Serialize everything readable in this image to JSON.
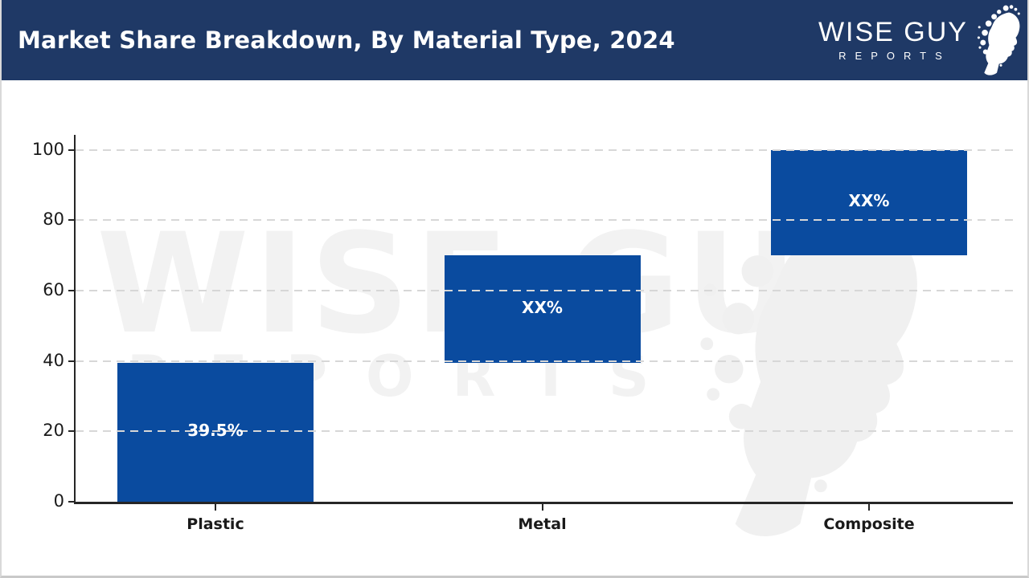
{
  "header": {
    "title": "Market Share Breakdown, By Material Type, 2024",
    "logo": {
      "primary": "WISE GUY",
      "secondary": "REPORTS"
    }
  },
  "watermark": {
    "primary": "WISE GUY",
    "secondary": "REPORTS"
  },
  "chart_data": {
    "type": "bar",
    "subtype": "waterfall",
    "title": "Market Share Breakdown, By Material Type, 2024",
    "categories": [
      "Plastic",
      "Metal",
      "Composite"
    ],
    "bars": [
      {
        "category": "Plastic",
        "start": 0,
        "end": 39.5,
        "label": "39.5%"
      },
      {
        "category": "Metal",
        "start": 39.5,
        "end": 70,
        "label": "XX%"
      },
      {
        "category": "Composite",
        "start": 70,
        "end": 100,
        "label": "XX%"
      }
    ],
    "yticks": [
      0,
      20,
      40,
      60,
      80,
      100
    ],
    "ylim": [
      0,
      104.2
    ],
    "xlabel": "",
    "ylabel": "",
    "grid": "horizontal-dashed-over-bars",
    "legend": "none",
    "colors": {
      "bar": "#0a4b9f",
      "bar_label": "#ffffff",
      "grid": "#d7d7d7",
      "axis": "#262626",
      "tick_label": "#1a1a1a",
      "header_bg": "#1f3966",
      "header_text": "#ffffff",
      "watermark": "#f2f2f2",
      "page_border": "#d0d0d0"
    }
  }
}
